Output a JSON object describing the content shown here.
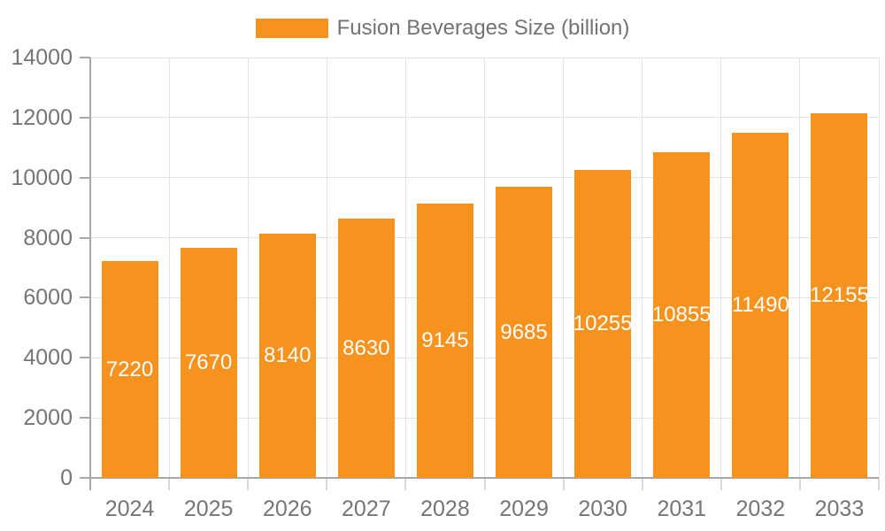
{
  "chart_data": {
    "type": "bar",
    "title": "Fusion Beverages Size (billion)",
    "legend": [
      "Fusion Beverages Size (billion)"
    ],
    "legend_position": "top",
    "categories": [
      "2024",
      "2025",
      "2026",
      "2027",
      "2028",
      "2029",
      "2030",
      "2031",
      "2032",
      "2033"
    ],
    "values": [
      7220,
      7670,
      8140,
      8630,
      9145,
      9685,
      10255,
      10855,
      11490,
      12155
    ],
    "value_labels": [
      "7220",
      "7670",
      "8140",
      "8630",
      "9145",
      "9685",
      "10255",
      "10855",
      "11490",
      "12155"
    ],
    "xlabel": "",
    "ylabel": "",
    "ylim": [
      0,
      14000
    ],
    "ytick_step": 2000,
    "ytick_labels": [
      "0",
      "2000",
      "4000",
      "6000",
      "8000",
      "10000",
      "12000",
      "14000"
    ],
    "grid": true,
    "colors": {
      "bar": "#F6921E",
      "axis": "#A8A8A8",
      "grid": "#E4E4E4",
      "x_tick": "#D9D9D9",
      "tick_label": "#757575",
      "value_label": "#FFFFFF",
      "legend_text": "#737373"
    }
  }
}
